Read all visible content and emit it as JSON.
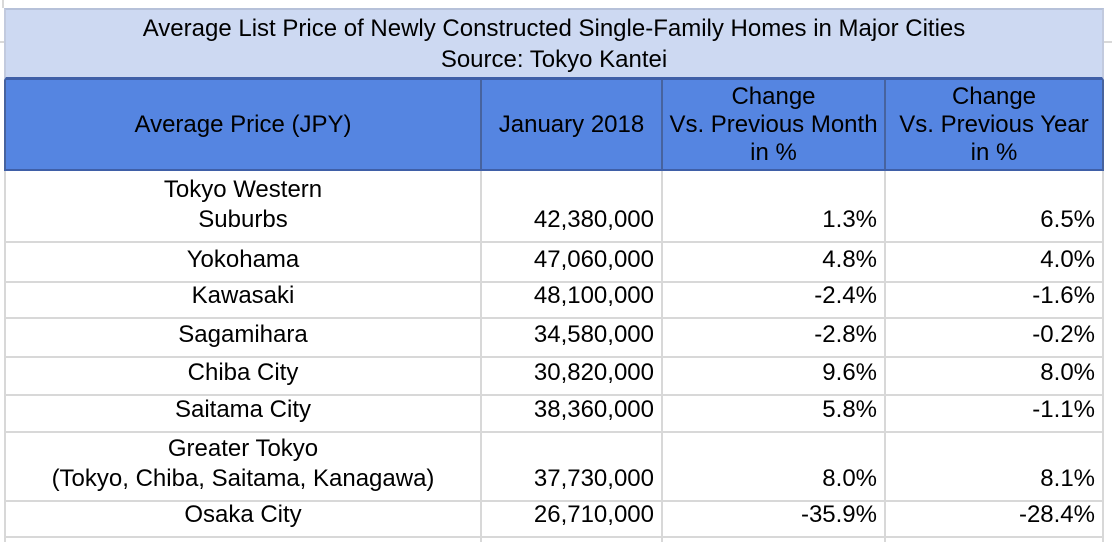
{
  "title": {
    "line1": "Average List Price of Newly Constructed Single-Family Homes in Major Cities",
    "line2": "Source: Tokyo Kantei"
  },
  "columns": [
    "Average Price (JPY)",
    "January 2018",
    "Change\nVs. Previous Month\nin %",
    "Change\nVs. Previous Year\nin %"
  ],
  "rows": [
    {
      "city": "Tokyo Western\nSuburbs",
      "price": "42,380,000",
      "mom": "1.3%",
      "yoy": "6.5%"
    },
    {
      "city": "Yokohama",
      "price": "47,060,000",
      "mom": "4.8%",
      "yoy": "4.0%"
    },
    {
      "city": "Kawasaki",
      "price": "48,100,000",
      "mom": "-2.4%",
      "yoy": "-1.6%"
    },
    {
      "city": "Sagamihara",
      "price": "34,580,000",
      "mom": "-2.8%",
      "yoy": "-0.2%"
    },
    {
      "city": "Chiba City",
      "price": "30,820,000",
      "mom": "9.6%",
      "yoy": "8.0%"
    },
    {
      "city": "Saitama City",
      "price": "38,360,000",
      "mom": "5.8%",
      "yoy": "-1.1%"
    },
    {
      "city": "Greater Tokyo\n(Tokyo, Chiba, Saitama, Kanagawa)",
      "price": "37,730,000",
      "mom": "8.0%",
      "yoy": "8.1%"
    },
    {
      "city": "Osaka City",
      "price": "26,710,000",
      "mom": "-35.9%",
      "yoy": "-28.4%"
    }
  ],
  "colors": {
    "title_bg": "#cdd9f2",
    "header_bg": "#5585e1",
    "header_border": "#3f5fa7",
    "grid": "#d8d8d8"
  }
}
